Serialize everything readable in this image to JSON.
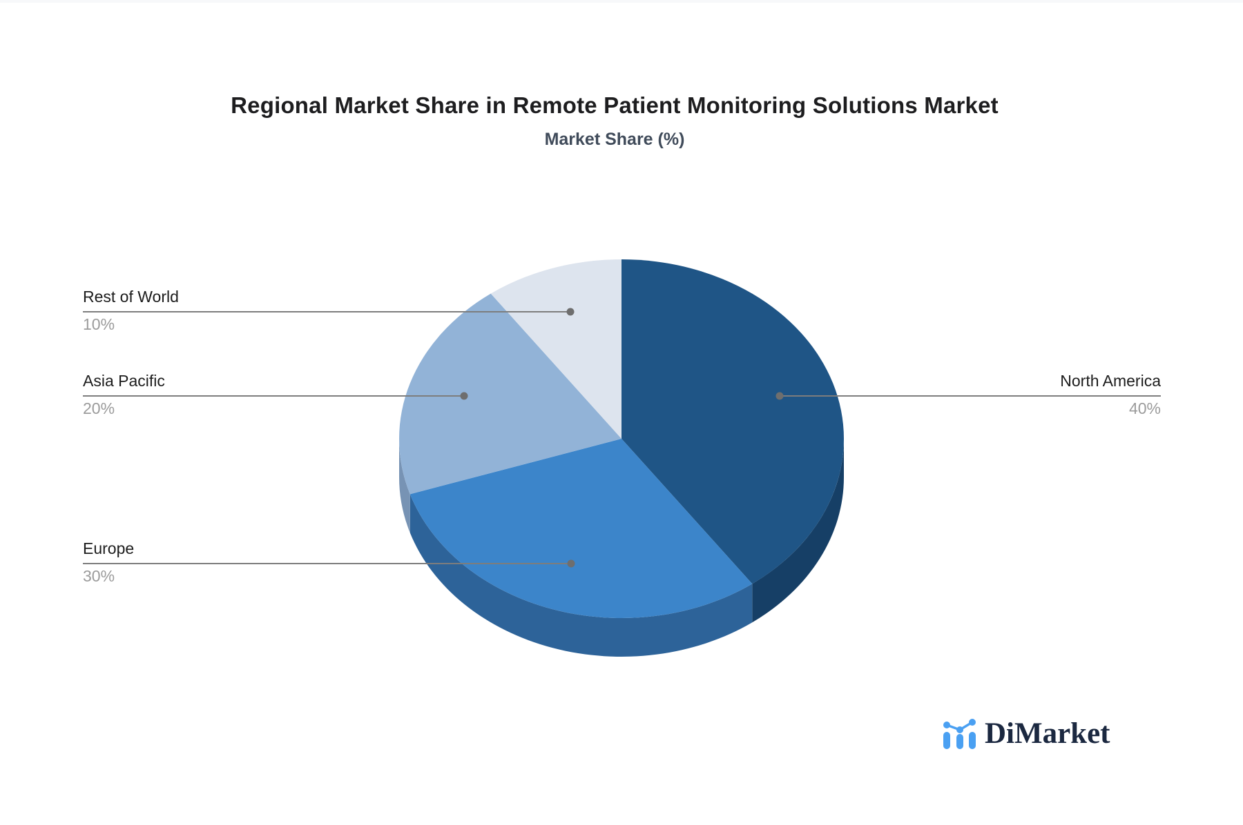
{
  "header": {
    "title": "Regional Market Share in Remote Patient Monitoring Solutions Market",
    "subtitle": "Market Share (%)"
  },
  "chart_data": {
    "type": "pie",
    "title": "Regional Market Share in Remote Patient Monitoring Solutions Market",
    "subtitle": "Market Share (%)",
    "unit": "%",
    "labels": [
      "North America",
      "Europe",
      "Asia Pacific",
      "Rest of World"
    ],
    "values": [
      40,
      30,
      20,
      10
    ],
    "value_labels": [
      "40%",
      "30%",
      "20%",
      "10%"
    ],
    "colors": [
      "#1f5586",
      "#3c85ca",
      "#92b3d7",
      "#dde4ee"
    ],
    "side_colors": [
      "#163f66",
      "#2d6399",
      "#7793b4",
      "#b9c3d3"
    ],
    "start_angle_deg": 0,
    "direction": "clockwise",
    "style_3d": true,
    "legend": "none",
    "label_style": {
      "name_color": "#1c1c1c",
      "value_color": "#9b9b9b"
    }
  },
  "callout_style": {
    "line_color": "#7d7d7d",
    "dot_color": "#6e6e6e"
  },
  "logo": {
    "text": "DiMarket",
    "icon": "bar-chart-with-trend-icon",
    "icon_color": "#4aa0f2",
    "text_color": "#1b2840"
  }
}
